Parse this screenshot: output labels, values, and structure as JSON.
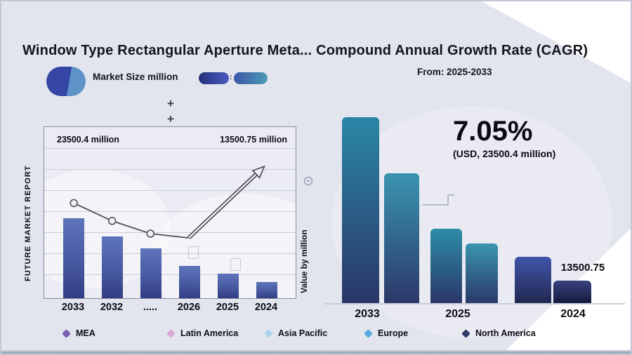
{
  "header": {
    "title": "Window Type Rectangular Aperture Meta... Compound Annual Growth Rate (CAGR)",
    "market_size_label": "Market Size million",
    "ratio_separator": ":",
    "period_label": "From: 2025-2033"
  },
  "branding": {
    "left_watermark": "FUTURE MARKET REPORT"
  },
  "decorations": {
    "plus": "+"
  },
  "chart_data": [
    {
      "name": "historical-trend-chart",
      "type": "bar+line",
      "categories": [
        "2033",
        "2032",
        ".....",
        "2026",
        "2025",
        "2024"
      ],
      "bar_values_pct": [
        100,
        77,
        62,
        40,
        31,
        20
      ],
      "line_values_pct": [
        56,
        45.5,
        38,
        35.5
      ],
      "arrow_tip_pct": 77,
      "start_label": "23500.4 million",
      "end_label": "13500.75 million",
      "known_values": {
        "2033": "23500.4 million",
        "2024": "13500.75 million"
      },
      "grid": true,
      "bar_color_top": "#5e74ba",
      "bar_color_bottom": "#323e83"
    },
    {
      "name": "forecast-column-chart",
      "type": "grouped-bar",
      "categories": [
        "2033",
        "2025",
        "2024"
      ],
      "series": [
        {
          "name": "primary",
          "values_pct": [
            100,
            40,
            25
          ]
        },
        {
          "name": "secondary",
          "values_pct": [
            70,
            32,
            12
          ]
        }
      ],
      "bar_gradients": [
        [
          [
            "#2a86a6",
            "#2a3666"
          ],
          [
            "#3a95b0",
            "#2b3868"
          ]
        ],
        [
          [
            "#2d8da9",
            "#2a3666"
          ],
          [
            "#3a95b0",
            "#2b3868"
          ]
        ],
        [
          [
            "#4254ab",
            "#20284f"
          ],
          [
            "#39427f",
            "#141b3e"
          ]
        ]
      ],
      "ylabel": "Value by million",
      "cagr_value": "7.05%",
      "cagr_note": "(USD, 23500.4 million)",
      "end_value_label": "13500.75"
    }
  ],
  "legend": {
    "items": [
      {
        "label": "MEA",
        "color": "#7a5fb5"
      },
      {
        "label": "Latin America",
        "color": "#d9a9d6"
      },
      {
        "label": "Asia Pacific",
        "color": "#a9d4ea"
      },
      {
        "label": "Europe",
        "color": "#58a8de"
      },
      {
        "label": "North America",
        "color": "#2e3a69"
      }
    ]
  },
  "colors": {
    "background": "#e3e5ee",
    "accent_navy": "#25307b",
    "accent_teal": "#4f9ab5",
    "text": "#14141f"
  }
}
